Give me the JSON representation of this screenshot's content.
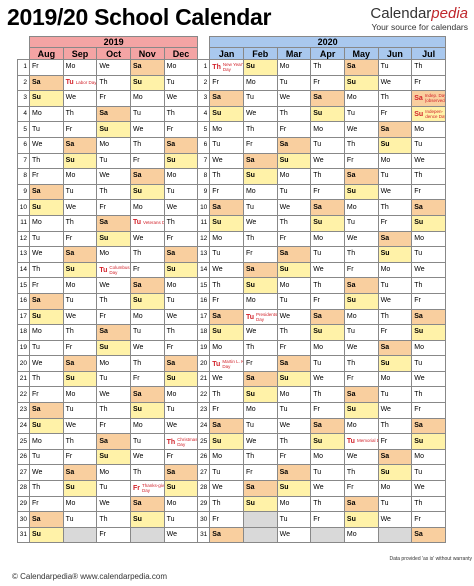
{
  "title": "2019/20 School Calendar",
  "brand": {
    "prefix": "Calendar",
    "suffix": "pedia",
    "tagline": "Your source for calendars"
  },
  "years": [
    "2019",
    "2020"
  ],
  "months": [
    "Aug",
    "Sep",
    "Oct",
    "Nov",
    "Dec",
    "Jan",
    "Feb",
    "Mar",
    "Apr",
    "May",
    "Jun",
    "Jul"
  ],
  "month_days": [
    31,
    30,
    31,
    30,
    31,
    31,
    29,
    31,
    30,
    31,
    30,
    31
  ],
  "month_start_dow": [
    4,
    0,
    2,
    5,
    0,
    3,
    6,
    0,
    3,
    5,
    1,
    3
  ],
  "weekday_labels": [
    "Mo",
    "Tu",
    "We",
    "Th",
    "Fr",
    "Sa",
    "Su"
  ],
  "colors": {
    "saturday": "#f9cf9f",
    "sunday": "#fff2a8",
    "holiday_text": "#d2222a",
    "year_2019": "#f4a4a4",
    "year_2020": "#a9c8ee"
  },
  "holidays": [
    {
      "month": 1,
      "day": 2,
      "name": "Labor Day"
    },
    {
      "month": 2,
      "day": 14,
      "name": "Columbus Day"
    },
    {
      "month": 3,
      "day": 11,
      "name": "Veterans Day"
    },
    {
      "month": 3,
      "day": 28,
      "name": "Thanks-giving Day"
    },
    {
      "month": 4,
      "day": 25,
      "name": "Christmas Day"
    },
    {
      "month": 5,
      "day": 1,
      "name": "New Year's Day"
    },
    {
      "month": 5,
      "day": 20,
      "name": "Martin L. King Day"
    },
    {
      "month": 6,
      "day": 17,
      "name": "Presidents' Day"
    },
    {
      "month": 9,
      "day": 25,
      "name": "Memorial Day"
    },
    {
      "month": 11,
      "day": 3,
      "name": "Indep. Day (observed)"
    },
    {
      "month": 11,
      "day": 4,
      "name": "Indepen-dence Day"
    }
  ],
  "side_note": "Data provided 'as is' without warranty",
  "footer": "© Calendarpedia®   www.calendarpedia.com"
}
